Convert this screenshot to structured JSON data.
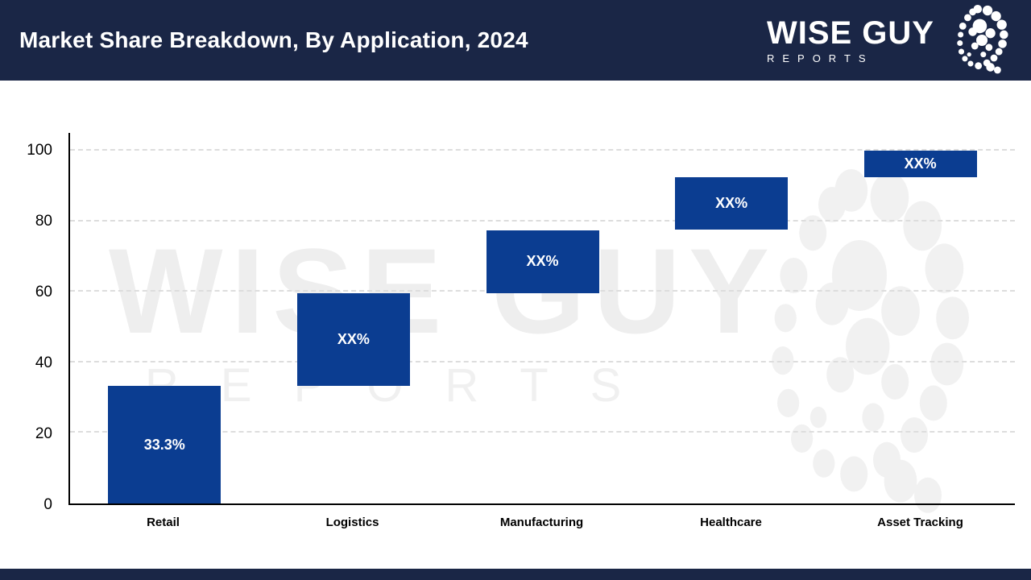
{
  "header": {
    "title": "Market Share Breakdown, By Application, 2024",
    "logo": {
      "line1": "WISE GUY",
      "line2": "REPORTS"
    }
  },
  "watermark": {
    "line1": "WISE GUY",
    "line2": "REPORTS"
  },
  "colors": {
    "header_bg": "#1a2646",
    "footer_bg": "#1a2646",
    "bar": "#0b3d91",
    "bar_label": "#ffffff",
    "grid": "#dddddd",
    "axis": "#000000",
    "watermark": "#eeeeee"
  },
  "chart_data": {
    "type": "bar",
    "variant": "waterfall-floating-bars",
    "title": "Market Share Breakdown, By Application, 2024",
    "categories": [
      "Retail",
      "Logistics",
      "Manufacturing",
      "Healthcare",
      "Asset Tracking"
    ],
    "segments": [
      {
        "category": "Retail",
        "start": 0,
        "end": 33.3,
        "label": "33.3%"
      },
      {
        "category": "Logistics",
        "start": 33.3,
        "end": 59.5,
        "label": "XX%"
      },
      {
        "category": "Manufacturing",
        "start": 59.5,
        "end": 77.5,
        "label": "XX%"
      },
      {
        "category": "Healthcare",
        "start": 77.5,
        "end": 92.5,
        "label": "XX%"
      },
      {
        "category": "Asset Tracking",
        "start": 92.5,
        "end": 100,
        "label": "XX%"
      }
    ],
    "cumulative_tops": [
      33.3,
      59.5,
      77.5,
      92.5,
      100
    ],
    "yticks": [
      0,
      20,
      40,
      60,
      80,
      100
    ],
    "ylim": [
      0,
      105
    ],
    "xlabel": "",
    "ylabel": "",
    "grid": "horizontal-dashed",
    "legend": "none"
  }
}
